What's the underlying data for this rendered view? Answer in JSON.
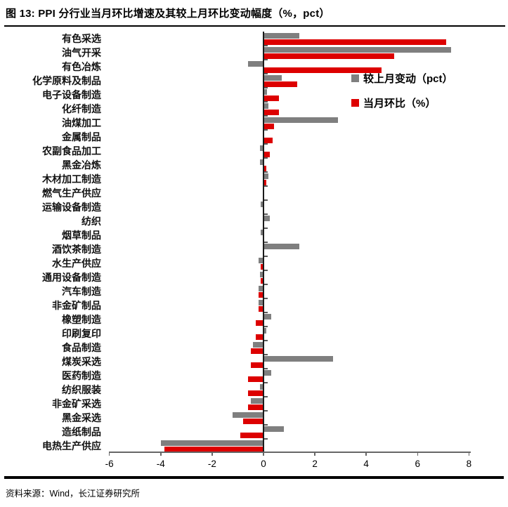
{
  "title": "图 13: PPI 分行业当月环比增速及其较上月环比变动幅度（%，pct）",
  "source": "资料来源：Wind，长江证券研究所",
  "legend": [
    {
      "label": "较上月变动（pct）",
      "color": "#7F7F7F"
    },
    {
      "label": "当月环比（%）",
      "color": "#DD0000"
    }
  ],
  "chart_data": {
    "type": "bar",
    "orientation": "horizontal",
    "title": "图 13: PPI 分行业当月环比增速及其较上月环比变动幅度（%，pct）",
    "xlabel": "",
    "ylabel": "",
    "xlim": [
      -6,
      8
    ],
    "xticks": [
      -6,
      -4,
      -2,
      0,
      2,
      4,
      6,
      8
    ],
    "grid": false,
    "legend_position": "upper-right-inside",
    "categories": [
      "有色采选",
      "油气开采",
      "有色冶炼",
      "化学原料及制品",
      "电子设备制造",
      "化纤制造",
      "油煤加工",
      "金属制品",
      "农副食品加工",
      "黑金冶炼",
      "木材加工制造",
      "燃气生产供应",
      "运输设备制造",
      "纺织",
      "烟草制品",
      "酒饮茶制造",
      "水生产供应",
      "通用设备制造",
      "汽车制造",
      "非金矿制品",
      "橡塑制造",
      "印刷复印",
      "食品制造",
      "煤炭采选",
      "医药制造",
      "纺织服装",
      "非金矿采选",
      "黑金采选",
      "造纸制品",
      "电热生产供应"
    ],
    "series": [
      {
        "name": "较上月变动（pct）",
        "color": "#7F7F7F",
        "values": [
          1.4,
          7.3,
          -0.6,
          0.7,
          0.15,
          0.2,
          2.9,
          0.0,
          -0.15,
          -0.15,
          0.2,
          0.0,
          -0.1,
          0.25,
          -0.1,
          1.4,
          -0.2,
          -0.15,
          -0.2,
          -0.2,
          0.3,
          0.1,
          -0.4,
          2.7,
          0.3,
          -0.15,
          -0.5,
          -1.2,
          0.8,
          -4.0
        ]
      },
      {
        "name": "当月环比（%）",
        "color": "#DD0000",
        "values": [
          7.1,
          5.1,
          4.6,
          1.3,
          0.6,
          0.6,
          0.4,
          0.35,
          0.25,
          0.1,
          0.1,
          0.0,
          0.0,
          0.0,
          0.0,
          0.0,
          -0.1,
          -0.1,
          -0.2,
          -0.2,
          -0.3,
          -0.3,
          -0.5,
          -0.5,
          -0.6,
          -0.6,
          -0.6,
          -0.8,
          -0.9,
          -3.85
        ]
      }
    ]
  }
}
